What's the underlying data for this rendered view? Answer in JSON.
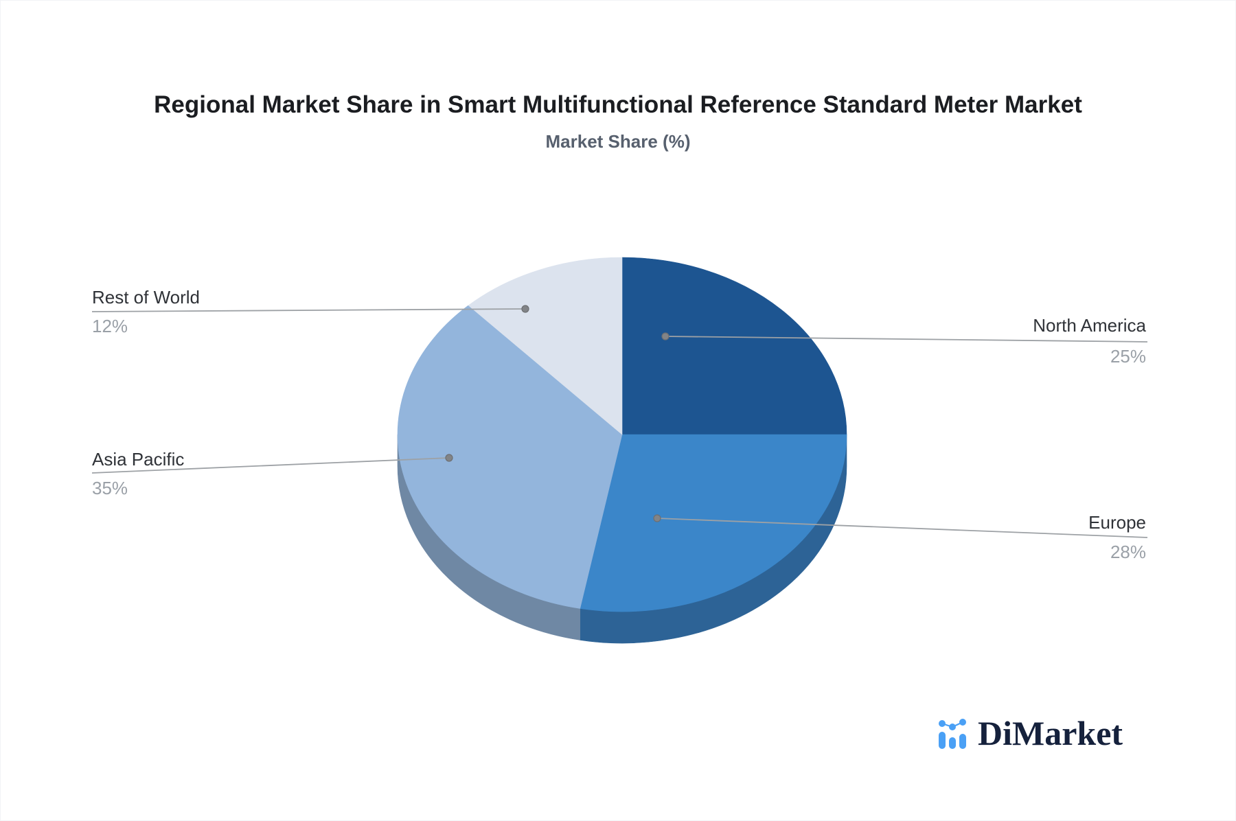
{
  "header": {
    "title": "Regional Market Share in Smart Multifunctional Reference Standard Meter Market",
    "subtitle": "Market Share (%)"
  },
  "chart_data": {
    "type": "pie",
    "title": "Regional Market Share in Smart Multifunctional Reference Standard Meter Market",
    "subtitle": "Market Share (%)",
    "unit": "%",
    "direction": "clockwise",
    "start_angle_deg": 0,
    "effect": "3d-depth",
    "legend_position": "none",
    "categories": [
      "North America",
      "Europe",
      "Asia Pacific",
      "Rest of World"
    ],
    "values": [
      25,
      28,
      35,
      12
    ],
    "colors": [
      "#1d5591",
      "#3b86c9",
      "#93b5dc",
      "#dce3ee"
    ],
    "side_colors": [
      "#16436e",
      "#2d6396",
      "#6f88a4",
      "#aab3c2"
    ],
    "leader_line_color": "#9da1a5",
    "anchor_dot_color": "#828487"
  },
  "callouts": [
    {
      "label": "North America",
      "value_text": "25%",
      "side": "right"
    },
    {
      "label": "Europe",
      "value_text": "28%",
      "side": "right"
    },
    {
      "label": "Asia Pacific",
      "value_text": "35%",
      "side": "left"
    },
    {
      "label": "Rest of World",
      "value_text": "12%",
      "side": "left"
    }
  ],
  "logo": {
    "text": "DiMarket",
    "icon": "bar-line-chart-icon",
    "accent_color": "#4aa0f5",
    "text_color": "#15213c"
  },
  "background_color": "#ffffff"
}
